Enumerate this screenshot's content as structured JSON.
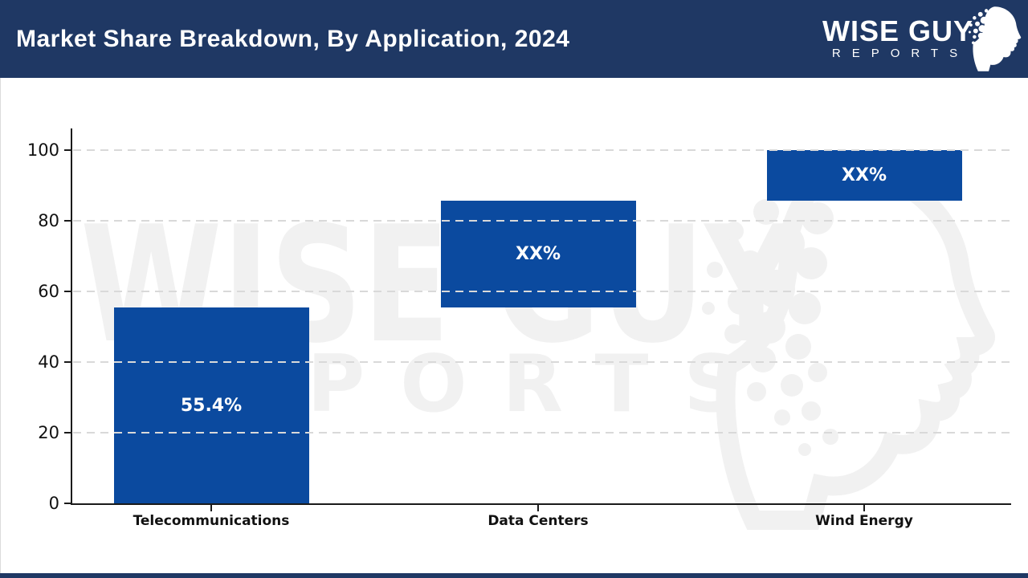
{
  "page": {
    "navy": "#1f3864",
    "background": "#ffffff"
  },
  "header": {
    "title": "Market Share Breakdown, By Application, 2024",
    "logo_line1": "WISE GUY",
    "logo_line2": "REPORTS",
    "logo_face_icon": "head-profile-dots-icon"
  },
  "watermark": {
    "line1": "WISE GUY",
    "line2": "REPORTS"
  },
  "chart_data": {
    "type": "bar",
    "subtype": "waterfall",
    "title": "Market Share Breakdown, By Application, 2024",
    "categories": [
      "Telecommunications",
      "Data Centers",
      "Wind Energy"
    ],
    "segments": [
      {
        "category": "Telecommunications",
        "start": 0,
        "end": 55.4,
        "label": "55.4%"
      },
      {
        "category": "Data Centers",
        "start": 55.4,
        "end": 85.6,
        "label": "XX%"
      },
      {
        "category": "Wind Energy",
        "start": 85.6,
        "end": 100,
        "label": "XX%"
      }
    ],
    "ylim": [
      0,
      100
    ],
    "yticks": [
      0,
      20,
      40,
      60,
      80,
      100
    ],
    "xlabel": "",
    "ylabel": "",
    "legend": "none",
    "grid": {
      "axis": "y",
      "style": "dashed",
      "color": "#d9d9d9",
      "drawn_over_bars": true
    },
    "bar_color": "#0b4a9f",
    "bar_label_color": "#ffffff",
    "axis_color": "#1a1a1a",
    "tick_label_color": "#111111"
  }
}
